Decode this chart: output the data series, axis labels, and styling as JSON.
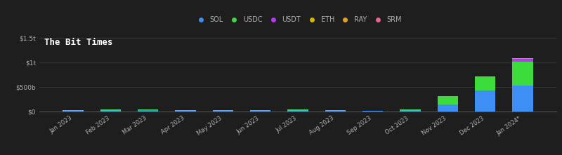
{
  "bg_color": "#1e1e1e",
  "categories": [
    "Jan 2023",
    "Feb 2023",
    "Mar 2023",
    "Apr 2023",
    "May 2023",
    "Jun 2023",
    "Jul 2023",
    "Aug 2023",
    "Sep 2023",
    "Oct 2023",
    "Nov 2023",
    "Dec 2023",
    "Jan 2024*"
  ],
  "series": {
    "SOL": [
      15,
      22,
      25,
      18,
      18,
      15,
      20,
      15,
      10,
      22,
      150,
      430,
      530
    ],
    "USDC": [
      12,
      18,
      20,
      14,
      14,
      12,
      18,
      13,
      8,
      18,
      160,
      270,
      490
    ],
    "USDT": [
      0,
      0,
      0,
      0,
      0,
      0,
      0,
      0,
      0,
      0,
      0,
      0,
      45
    ],
    "ETH": [
      0,
      0,
      0,
      0,
      0,
      0,
      0,
      0,
      0,
      0,
      0,
      8,
      12
    ],
    "RAY": [
      0,
      0,
      0,
      0,
      0,
      0,
      0,
      0,
      0,
      0,
      0,
      0,
      6
    ],
    "SRM": [
      0,
      0,
      0,
      0,
      0,
      0,
      0,
      0,
      0,
      0,
      0,
      0,
      5
    ]
  },
  "colors": {
    "SOL": "#3d8ef5",
    "USDC": "#3ddc3d",
    "USDT": "#bb35f5",
    "ETH": "#d4b800",
    "RAY": "#e8a020",
    "SRM": "#f06292"
  },
  "ylabel_ticks": [
    "$0",
    "$500b",
    "$1t",
    "$1.5t"
  ],
  "ytick_vals": [
    0,
    500,
    1000,
    1500
  ],
  "ylim": [
    0,
    1700
  ],
  "watermark": "The Bit Times",
  "grid_color": "#3a3a3a",
  "text_color": "#b0b0b0",
  "axis_color": "#555555"
}
